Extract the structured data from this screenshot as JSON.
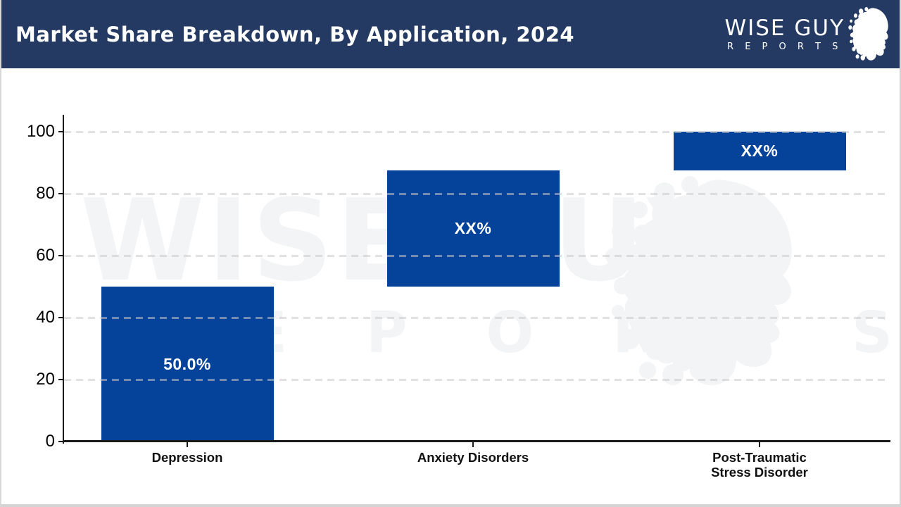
{
  "header": {
    "title": "Market Share Breakdown, By Application, 2024",
    "logo": {
      "line1": "WISE GUY",
      "line2": "R E P O R T S"
    }
  },
  "watermark": {
    "line1": "WISE GUY",
    "line2": "R E P O R T S"
  },
  "colors": {
    "header_bg": "#243a63",
    "bar": "#05429a",
    "bar_label": "#ffffff",
    "gridline": "#d9d9d9",
    "axis": "#1a1a1a",
    "watermark": "#f3f4f6"
  },
  "chart_data": {
    "type": "bar",
    "subtype": "waterfall-percentage",
    "title": "Market Share Breakdown, By Application, 2024",
    "categories": [
      "Depression",
      "Anxiety Disorders",
      "Post-Traumatic Stress Disorder"
    ],
    "segments": [
      {
        "category": "Depression",
        "start": 0,
        "end": 50,
        "label": "50.0%"
      },
      {
        "category": "Anxiety Disorders",
        "start": 50,
        "end": 87.5,
        "label": "XX%"
      },
      {
        "category": "Post-Traumatic Stress Disorder",
        "start": 87.5,
        "end": 100,
        "label": "XX%"
      }
    ],
    "xlabel": "",
    "ylabel": "",
    "ylim": [
      0,
      100
    ],
    "yticks": [
      0,
      20,
      40,
      60,
      80,
      100
    ],
    "grid": "horizontal-dashed",
    "legend": "none"
  }
}
